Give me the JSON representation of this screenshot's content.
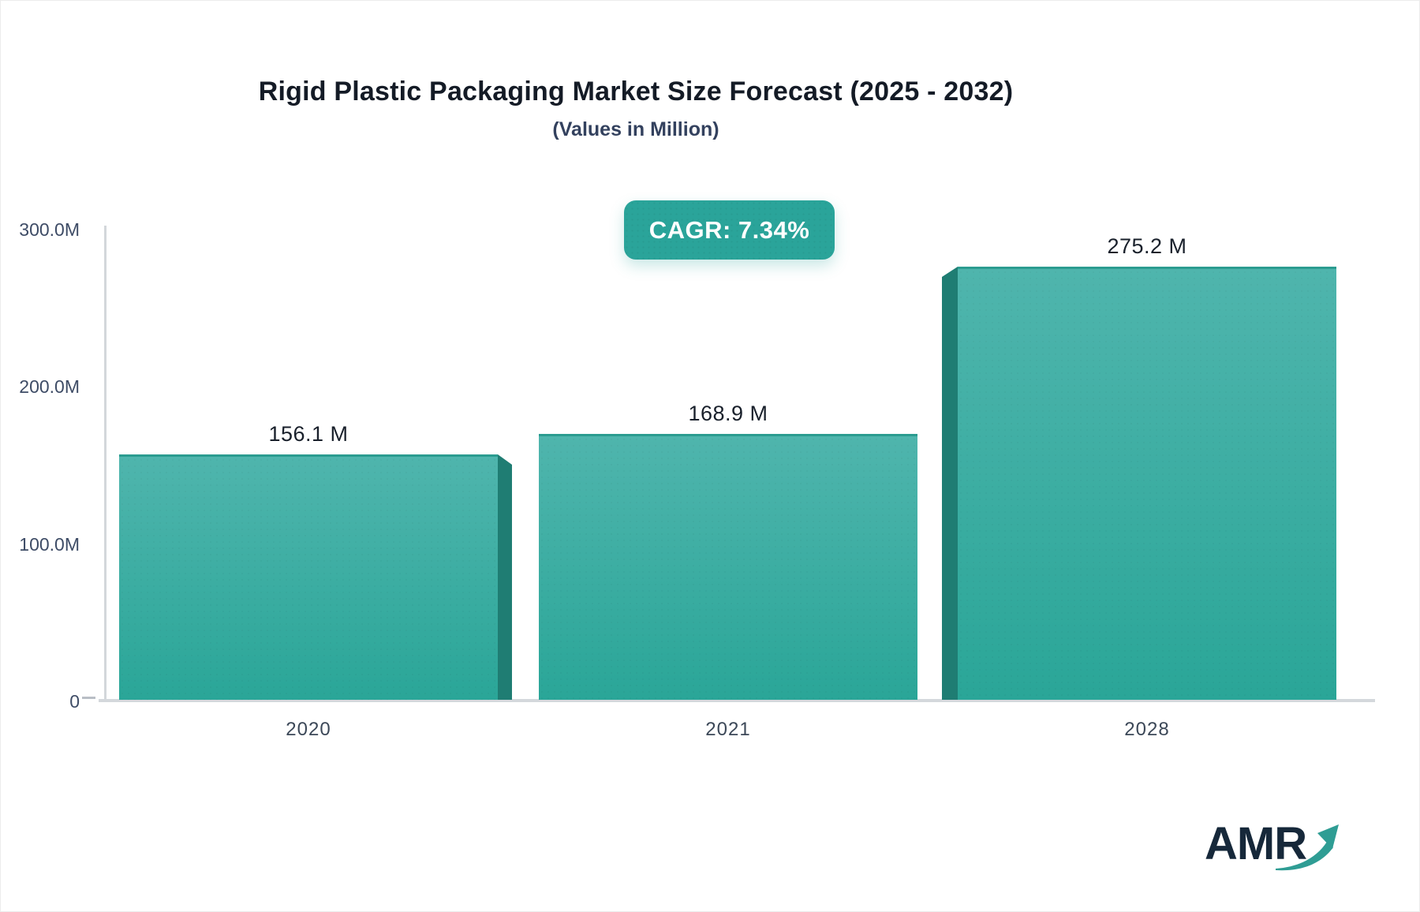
{
  "header": {
    "title": "Rigid Plastic Packaging Market Size Forecast (2025 - 2032)",
    "subtitle": "(Values in Million)"
  },
  "badge": {
    "label": "CAGR: 7.34%",
    "color": "#2aa49a",
    "text_color": "#ffffff"
  },
  "chart_data": {
    "type": "bar",
    "title": "Rigid Plastic Packaging Market Size Forecast (2025 - 2032)",
    "subtitle": "(Values in Million)",
    "categories": [
      "2020",
      "2021",
      "2028"
    ],
    "values": [
      156.1,
      168.9,
      275.2
    ],
    "value_labels": [
      "156.1 M",
      "168.9 M",
      "275.2 M"
    ],
    "unit": "Million",
    "xlabel": "",
    "ylabel": "",
    "ylim": [
      0,
      300
    ],
    "yticks": [
      {
        "label": "300.0M",
        "value": 300
      },
      {
        "label": "200.0M",
        "value": 200
      },
      {
        "label": "100.0M",
        "value": 100
      },
      {
        "label": "0",
        "value": 0
      }
    ],
    "grid": false,
    "legend": "none",
    "bar_color_top": "#4fb5ad",
    "bar_color_bottom": "#2aa698",
    "bar_side_color": "#1f7d73",
    "effect": "3d-side-faces-toward-center"
  },
  "logo": {
    "text": "AMR",
    "text_color": "#16283a",
    "arrow_color": "#2f9d94"
  }
}
